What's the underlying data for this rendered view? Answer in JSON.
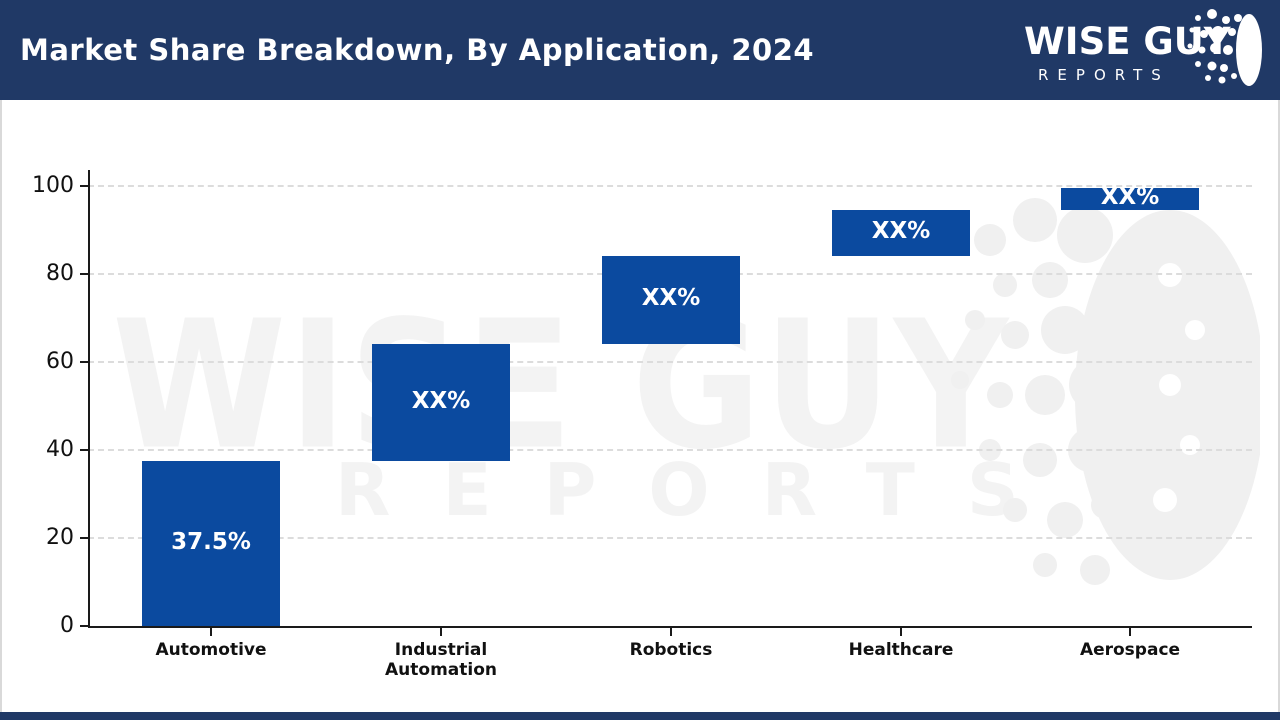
{
  "header": {
    "title": "Market Share Breakdown, By Application, 2024",
    "logo": {
      "line1": "WISE GUY",
      "line2": "REPORTS"
    }
  },
  "watermark": {
    "line1": "WISE GUY",
    "line2": "REPORTS"
  },
  "colors": {
    "header_bg": "#203966",
    "bar": "#0b4a9f",
    "bar_label": "#ffffff",
    "axis": "#1a1a1a",
    "gridline": "#dcdcdc",
    "watermark": "#f3f3f3"
  },
  "chart_data": {
    "type": "bar",
    "subtype": "waterfall",
    "title": "Market Share Breakdown, By Application, 2024",
    "xlabel": "",
    "ylabel": "",
    "ylim": [
      0,
      105
    ],
    "yticks": [
      0,
      20,
      40,
      60,
      80,
      100
    ],
    "grid": "horizontal-dashed",
    "categories": [
      "Automotive",
      "Industrial Automation",
      "Robotics",
      "Healthcare",
      "Aerospace"
    ],
    "segments": [
      {
        "category": "Automotive",
        "start": 0,
        "end": 37.5,
        "value_label": "37.5%"
      },
      {
        "category": "Industrial Automation",
        "start": 37.5,
        "end": 64,
        "value_label": "XX%"
      },
      {
        "category": "Robotics",
        "start": 64,
        "end": 84,
        "value_label": "XX%"
      },
      {
        "category": "Healthcare",
        "start": 84,
        "end": 94.5,
        "value_label": "XX%"
      },
      {
        "category": "Aerospace",
        "start": 94.5,
        "end": 99.5,
        "value_label": "XX%"
      }
    ]
  }
}
